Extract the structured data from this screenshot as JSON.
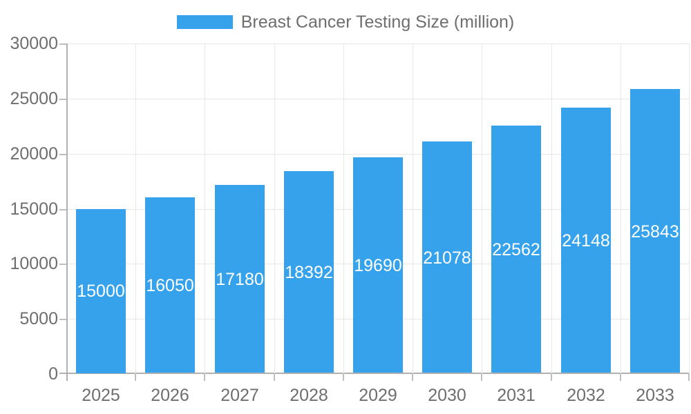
{
  "legend": {
    "label": "Breast Cancer Testing Size (million)"
  },
  "colors": {
    "bar": "#36A2EB",
    "bar_label": "#FFFFFF",
    "axis_text": "#6E6E6E",
    "grid_light": "#E6E6E6",
    "axis_dark": "#B0B0B0",
    "tick": "#BEBEBE",
    "background": "#FFFFFF"
  },
  "chart_data": {
    "type": "bar",
    "title": "",
    "categories": [
      "2025",
      "2026",
      "2027",
      "2028",
      "2029",
      "2030",
      "2031",
      "2032",
      "2033"
    ],
    "series": [
      {
        "name": "Breast Cancer Testing Size (million)",
        "values": [
          15000,
          16050,
          17180,
          18392,
          19690,
          21078,
          22562,
          24148,
          25843
        ]
      }
    ],
    "value_labels": [
      "15000",
      "16050",
      "17180",
      "18392",
      "19690",
      "21078",
      "22562",
      "24148",
      "25843"
    ],
    "xlabel": "",
    "ylabel": "",
    "ylim": [
      0,
      30000
    ],
    "yticks": [
      0,
      5000,
      10000,
      15000,
      20000,
      25000,
      30000
    ],
    "ytick_labels": [
      "0",
      "5000",
      "10000",
      "15000",
      "20000",
      "25000",
      "30000"
    ],
    "grid": true,
    "legend_position": "top",
    "value_label_position": "inside-center"
  }
}
